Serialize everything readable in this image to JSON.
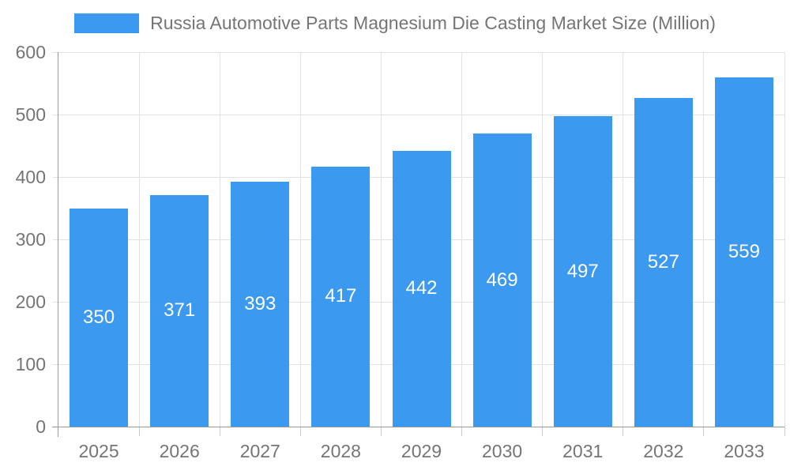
{
  "chart_data": {
    "type": "bar",
    "title": "Russia Automotive Parts Magnesium Die Casting Market Size (Million)",
    "categories": [
      "2025",
      "2026",
      "2027",
      "2028",
      "2029",
      "2030",
      "2031",
      "2032",
      "2033"
    ],
    "values": [
      350,
      371,
      393,
      417,
      442,
      469,
      497,
      527,
      559
    ],
    "bar_value_labels": [
      "350",
      "371",
      "393",
      "417",
      "442",
      "469",
      "497",
      "527",
      "559"
    ],
    "xlabel": "",
    "ylabel": "",
    "ylim": [
      0,
      600
    ],
    "y_ticks": [
      0,
      100,
      200,
      300,
      400,
      500,
      600
    ],
    "grid": "on",
    "legend_position": "top",
    "legend_entries": [
      "Russia Automotive Parts Magnesium Die Casting Market Size (Million)"
    ],
    "colors": {
      "bar": "#3B99EF",
      "value_label": "#FFFFFF",
      "axis_text": "#757575",
      "axis_line": "#999999",
      "gridline": "#E2E2E2",
      "tick": "#CBCBCB",
      "background": "#FFFFFF"
    }
  }
}
